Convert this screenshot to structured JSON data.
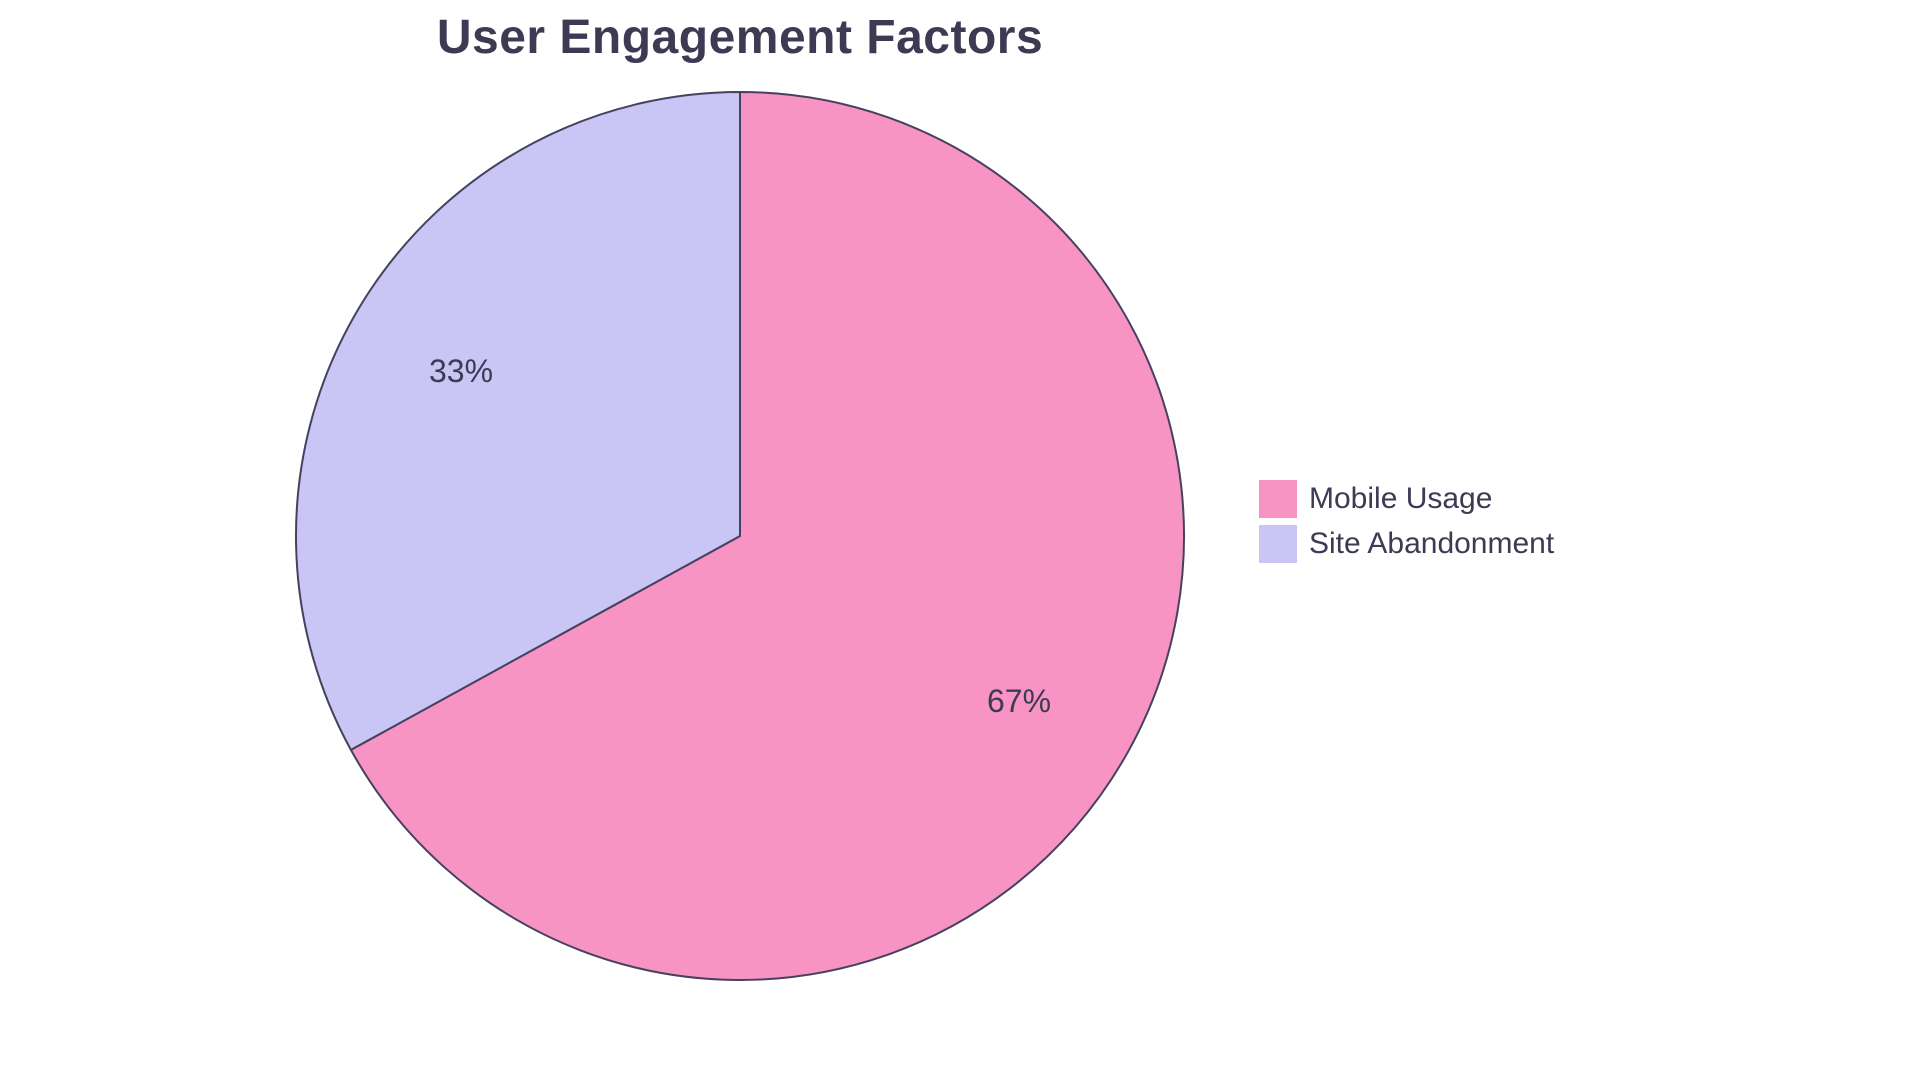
{
  "chart_data": {
    "type": "pie",
    "title": "User Engagement Factors",
    "labels": [
      "Mobile Usage",
      "Site Abandonment"
    ],
    "values": [
      67,
      33
    ],
    "percent_labels": [
      "67%",
      "33%"
    ],
    "colors": [
      "#f794c4",
      "#c9c5f4"
    ],
    "slice_stroke_color": "#45415e",
    "text_color": "#3d3b54",
    "background_color": "#ffffff",
    "legend_position": "right",
    "start_angle_deg": -90,
    "direction": "clockwise"
  }
}
